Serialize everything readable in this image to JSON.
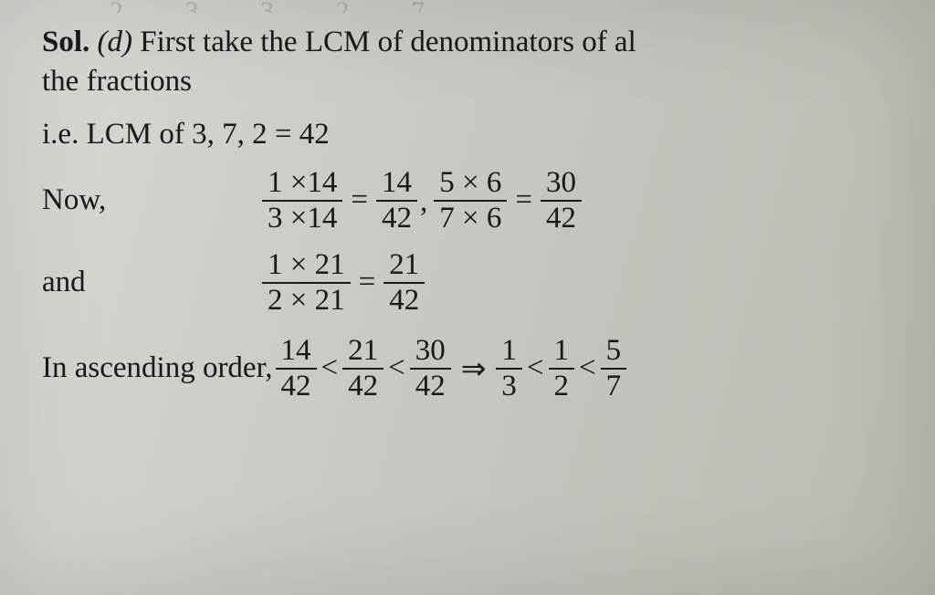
{
  "colors": {
    "text": "#1a1a1a",
    "rule": "#1a1a1a",
    "bg_from": "#d8dad4",
    "bg_to": "#b8bbb0"
  },
  "typography": {
    "family": "Georgia / Times-like serif",
    "body_size_pt": 24,
    "line_height": 1.25
  },
  "ghost_top": "2    3                          3    2    7",
  "sol_prefix": "Sol.",
  "option": "(d)",
  "sol_text_1": " First take the LCM of denominators of al",
  "sol_text_2": "the fractions",
  "lcm_line_prefix": "i.e.  LCM of ",
  "lcm_values": "3, 7, 2",
  "lcm_eq": " = ",
  "lcm_result": "42",
  "now_label": "Now,",
  "and_label": "and",
  "asc_label": "In ascending order, ",
  "eq": "=",
  "lt": "<",
  "comma": ",",
  "implies": "⇒",
  "fracs": {
    "f1_num": "1 ×14",
    "f1_den": "3 ×14",
    "f2_num": "14",
    "f2_den": "42",
    "f3_num": "5 × 6",
    "f3_den": "7 × 6",
    "f4_num": "30",
    "f4_den": "42",
    "g1_num": "1 × 21",
    "g1_den": "2 × 21",
    "g2_num": "21",
    "g2_den": "42",
    "a1_num": "14",
    "a1_den": "42",
    "a2_num": "21",
    "a2_den": "42",
    "a3_num": "30",
    "a3_den": "42",
    "r1_num": "1",
    "r1_den": "3",
    "r2_num": "1",
    "r2_den": "2",
    "r3_num": "5",
    "r3_den": "7"
  }
}
